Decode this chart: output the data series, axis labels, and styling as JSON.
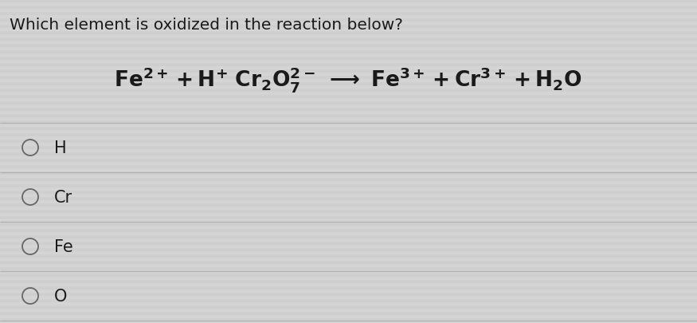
{
  "question": "Which element is oxidized in the reaction below?",
  "options": [
    "H",
    "Cr",
    "Fe",
    "O"
  ],
  "background_color": "#d4d4d4",
  "stripe_color": "#cbcbcb",
  "text_color": "#1a1a1a",
  "question_fontsize": 14.5,
  "equation_fontsize": 19,
  "option_fontsize": 15,
  "divider_color": "#b0b0b0",
  "circle_color": "#666666",
  "figwidth": 8.75,
  "figheight": 4.06,
  "dpi": 100
}
